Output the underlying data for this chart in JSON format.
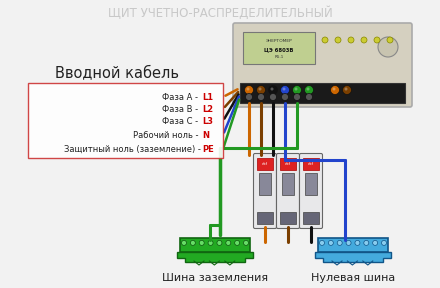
{
  "title": "ЩИТ УЧЕТНО-РАСПРЕДЕЛИТЕЛЬНЫЙ",
  "title_color": "#c8c8c8",
  "title_fontsize": 8.5,
  "bg_color": "#f2f2f2",
  "label_intro": "Вводной кабель",
  "label_ground_bus": "Шина заземления",
  "label_neutral_bus": "Нулевая шина",
  "wire_labels": [
    {
      "text": "Фаза А - ",
      "suffix": "L1"
    },
    {
      "text": "Фаза В - ",
      "suffix": "L2"
    },
    {
      "text": "Фаза С - ",
      "suffix": "L3"
    },
    {
      "text": "Рабочий ноль - ",
      "suffix": "N"
    },
    {
      "text": "Защитный ноль (заземление) -",
      "suffix": "PE"
    }
  ],
  "wire_colors": [
    "#cc6600",
    "#7B3F00",
    "#111111",
    "#2244cc",
    "#229922"
  ],
  "phase_wire_colors": [
    "#cc6600",
    "#7B3F00",
    "#111111"
  ],
  "neutral_color": "#2244cc",
  "pe_color": "#229922",
  "cb_body_color": "#e8e8ea",
  "cb_handle_color": "#cc2222",
  "ground_bus_color": "#22aa22",
  "ground_bus_edge": "#116611",
  "neutral_bus_color": "#44aadd",
  "neutral_bus_edge": "#115588",
  "meter_body_color": "#d5d0c0",
  "meter_term_color": "#1a1a1a",
  "label_box_edge": "#cc3333",
  "text_color": "#222222",
  "suffix_color": "#cc0000"
}
